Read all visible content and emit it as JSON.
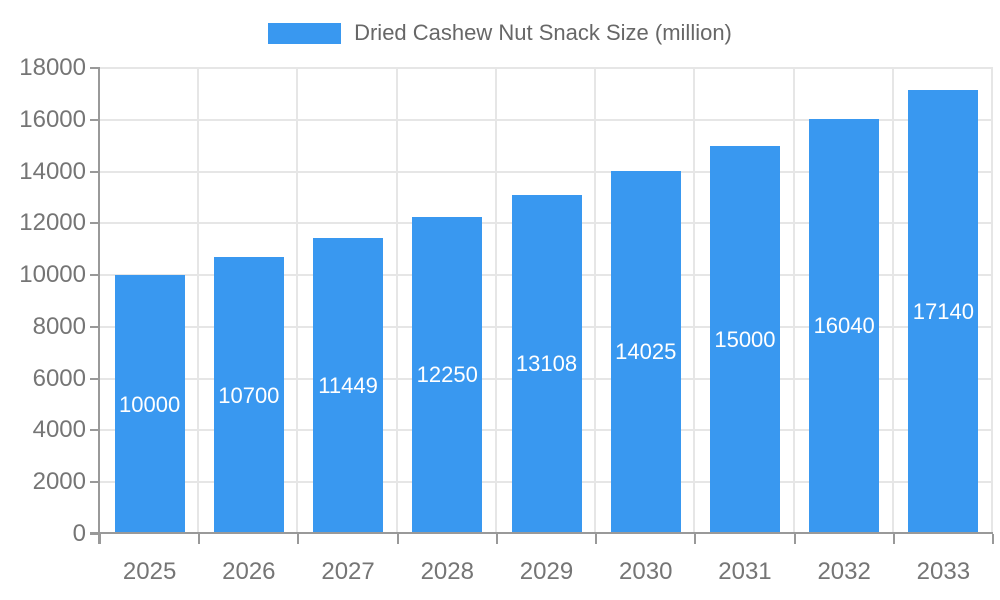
{
  "chart_data": {
    "type": "bar",
    "title": "",
    "xlabel": "",
    "ylabel": "",
    "categories": [
      "2025",
      "2026",
      "2027",
      "2028",
      "2029",
      "2030",
      "2031",
      "2032",
      "2033"
    ],
    "values": [
      10000,
      10700,
      11449,
      12250,
      13108,
      14025,
      15000,
      16040,
      17140
    ],
    "series": [
      {
        "name": "Dried Cashew Nut Snack Size (million)",
        "values": [
          10000,
          10700,
          11449,
          12250,
          13108,
          14025,
          15000,
          16040,
          17140
        ]
      }
    ],
    "legend": [
      "Dried Cashew Nut Snack Size (million)"
    ],
    "legend_position": "top-center",
    "grid": true,
    "ylim": [
      0,
      18000
    ],
    "ytick_step": 2000,
    "ytick_labels": [
      "0",
      "2000",
      "4000",
      "6000",
      "8000",
      "10000",
      "12000",
      "14000",
      "16000",
      "18000"
    ],
    "bar_value_labels_visible": true,
    "colors": {
      "bar": "#3998F0",
      "grid_line": "#E6E6E6",
      "axis_line": "#999999",
      "tick_label": "#757575",
      "legend_text": "#676767",
      "bar_label": "#FFFFFF",
      "background": "#FFFFFF"
    }
  }
}
